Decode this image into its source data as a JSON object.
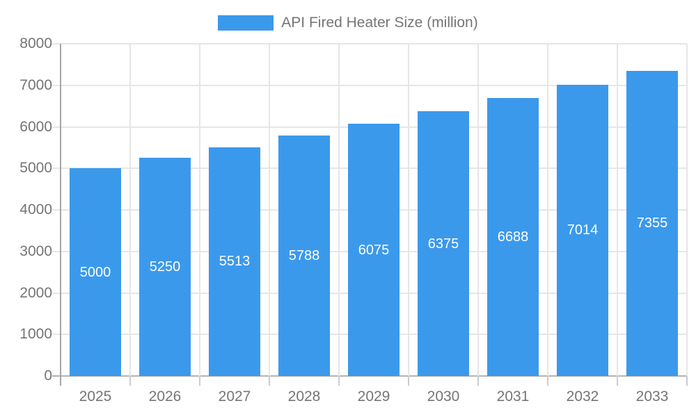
{
  "chart_data": {
    "type": "bar",
    "title": "",
    "legend": {
      "label": "API Fired Heater Size (million)",
      "position": "top"
    },
    "categories": [
      "2025",
      "2026",
      "2027",
      "2028",
      "2029",
      "2030",
      "2031",
      "2032",
      "2033"
    ],
    "series": [
      {
        "name": "API Fired Heater Size (million)",
        "values": [
          5000,
          5250,
          5513,
          5788,
          6075,
          6375,
          6688,
          7014,
          7355
        ]
      }
    ],
    "value_labels": [
      "5000",
      "5250",
      "5513",
      "5788",
      "6075",
      "6375",
      "6688",
      "7014",
      "7355"
    ],
    "value_labels_position": "inside-center",
    "xlabel": "",
    "ylabel": "",
    "ylim": [
      0,
      8000
    ],
    "yticks": [
      0,
      1000,
      2000,
      3000,
      4000,
      5000,
      6000,
      7000,
      8000
    ],
    "grid": true,
    "colors": {
      "bar": "#3B99EC",
      "bar_label_text": "#ffffff",
      "axis_text": "#757575",
      "gridline": "#e6e6e6",
      "axis_line": "#a6a6a6",
      "baseline": "#b3b3b3",
      "tick": "#cccccc"
    }
  }
}
